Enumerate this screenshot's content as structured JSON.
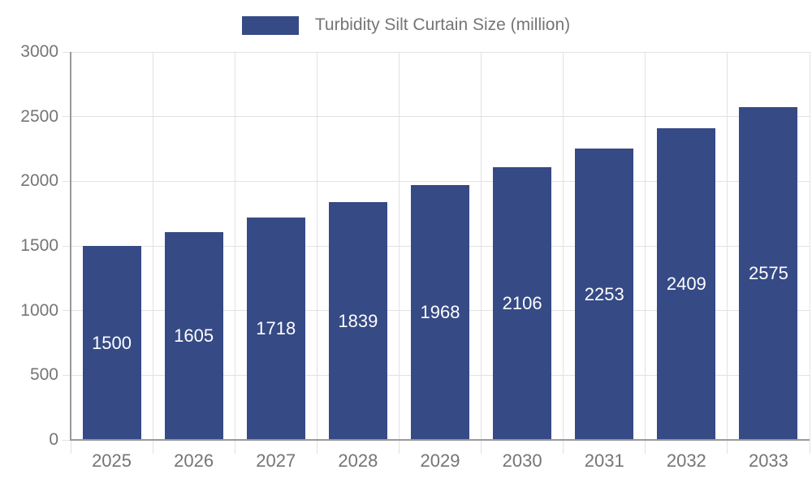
{
  "chart_data": {
    "type": "bar",
    "title": "",
    "legend": "Turbidity Silt Curtain Size (million)",
    "legend_position": "top-center",
    "categories": [
      "2025",
      "2026",
      "2027",
      "2028",
      "2029",
      "2030",
      "2031",
      "2032",
      "2033"
    ],
    "values": [
      1500,
      1605,
      1718,
      1839,
      1968,
      2106,
      2253,
      2409,
      2575
    ],
    "xlabel": "",
    "ylabel": "",
    "ylim": [
      0,
      3000
    ],
    "y_ticks": [
      0,
      500,
      1000,
      1500,
      2000,
      2500,
      3000
    ],
    "grid": true,
    "value_labels": "inside-center-white",
    "colors": {
      "bar": "#364A85",
      "bar_label": "#FFFFFF",
      "axis_line": "#999999",
      "gridline": "#E2E2E2",
      "tick_label": "#757575",
      "legend_text": "#757575",
      "background": "#FFFFFF"
    }
  }
}
